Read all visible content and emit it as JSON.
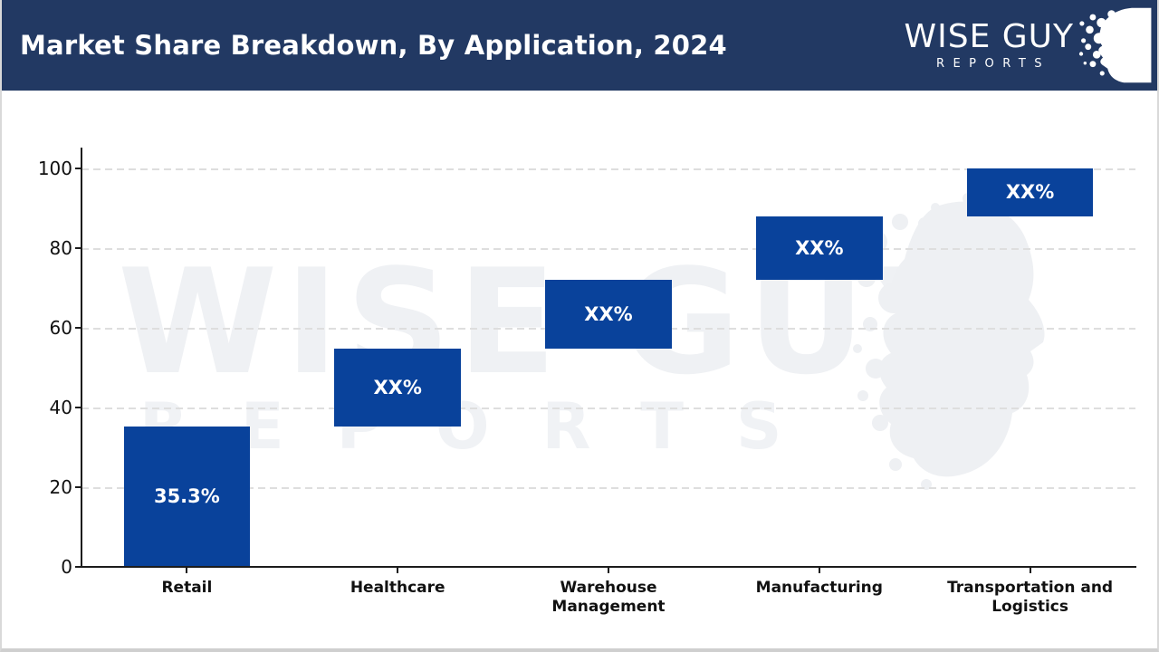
{
  "header": {
    "title": "Market Share Breakdown, By Application, 2024",
    "bg_color": "#223963",
    "logo": {
      "name": "WISE GUY",
      "tagline": "REPORTS"
    }
  },
  "watermark": {
    "name": "WISE GUY",
    "tagline": "REPORTS"
  },
  "chart_data": {
    "type": "bar",
    "subtype": "waterfall",
    "title": "Market Share Breakdown, By Application, 2024",
    "categories": [
      "Retail",
      "Healthcare",
      "Warehouse Management",
      "Manufacturing",
      "Transportation and Logistics"
    ],
    "category_label_lines": [
      [
        "Retail"
      ],
      [
        "Healthcare"
      ],
      [
        "Warehouse",
        "Management"
      ],
      [
        "Manufacturing"
      ],
      [
        "Transportation and",
        "Logistics"
      ]
    ],
    "segments": [
      {
        "category": "Retail",
        "start": 0,
        "end": 35.3,
        "label": "35.3%"
      },
      {
        "category": "Healthcare",
        "start": 35.3,
        "end": 54.8,
        "label": "XX%"
      },
      {
        "category": "Warehouse Management",
        "start": 54.8,
        "end": 72.0,
        "label": "XX%"
      },
      {
        "category": "Manufacturing",
        "start": 72.0,
        "end": 88.0,
        "label": "XX%"
      },
      {
        "category": "Transportation and Logistics",
        "start": 88.0,
        "end": 100.0,
        "label": "XX%"
      }
    ],
    "yticks": [
      0,
      20,
      40,
      60,
      80,
      100
    ],
    "ylim": [
      0,
      105.2
    ],
    "xlabel": "",
    "ylabel": "",
    "grid": true,
    "gridline_color": "#dedede",
    "legend": "none",
    "bar_color": "#09429b",
    "bar_label_color": "#ffffff"
  },
  "colors": {
    "header_bg": "#223963",
    "axis": "#1c1c1c",
    "tick_label": "#111111",
    "watermark": "#eff1f4",
    "frame_border": "#d9d9d9"
  }
}
